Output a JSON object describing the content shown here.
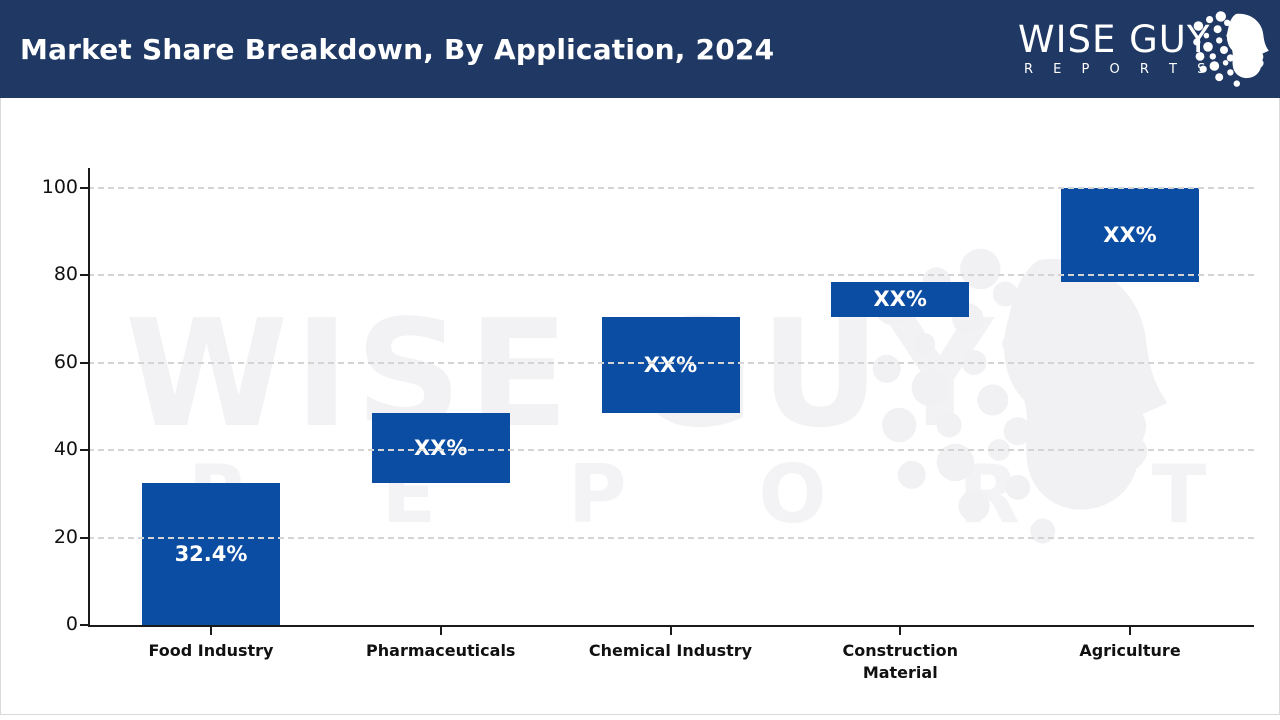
{
  "header": {
    "title": "Market Share Breakdown, By Application, 2024",
    "background_color": "#1f3864",
    "brand": {
      "line1": "WISE GUY",
      "line2": "R E P O R T S",
      "head_icon": "dotted-head-profile"
    }
  },
  "watermark": {
    "line1": "WISE GUY",
    "line2": "R E P O R T S",
    "head_icon": "dotted-head-profile"
  },
  "chart_data": {
    "type": "bar",
    "subtype": "waterfall",
    "title": "Market Share Breakdown, By Application, 2024",
    "xlabel": "",
    "ylabel": "",
    "categories": [
      "Food Industry",
      "Pharmaceuticals",
      "Chemical Industry",
      "Construction Material",
      "Agriculture"
    ],
    "segments": [
      {
        "category": "Food Industry",
        "start": 0,
        "end": 32.4,
        "label": "32.4%"
      },
      {
        "category": "Pharmaceuticals",
        "start": 32.4,
        "end": 48.5,
        "label": "XX%"
      },
      {
        "category": "Chemical Industry",
        "start": 48.5,
        "end": 70.5,
        "label": "XX%"
      },
      {
        "category": "Construction Material",
        "start": 70.5,
        "end": 78.4,
        "label": "XX%"
      },
      {
        "category": "Agriculture",
        "start": 78.4,
        "end": 100,
        "label": "XX%"
      }
    ],
    "yticks": [
      0,
      20,
      40,
      60,
      80,
      100
    ],
    "ylim": [
      0,
      104
    ],
    "bar_color": "#0b4da2",
    "label_color": "#ffffff",
    "grid": "horizontal-dashed",
    "grid_over_bars": true,
    "legend": "none"
  }
}
